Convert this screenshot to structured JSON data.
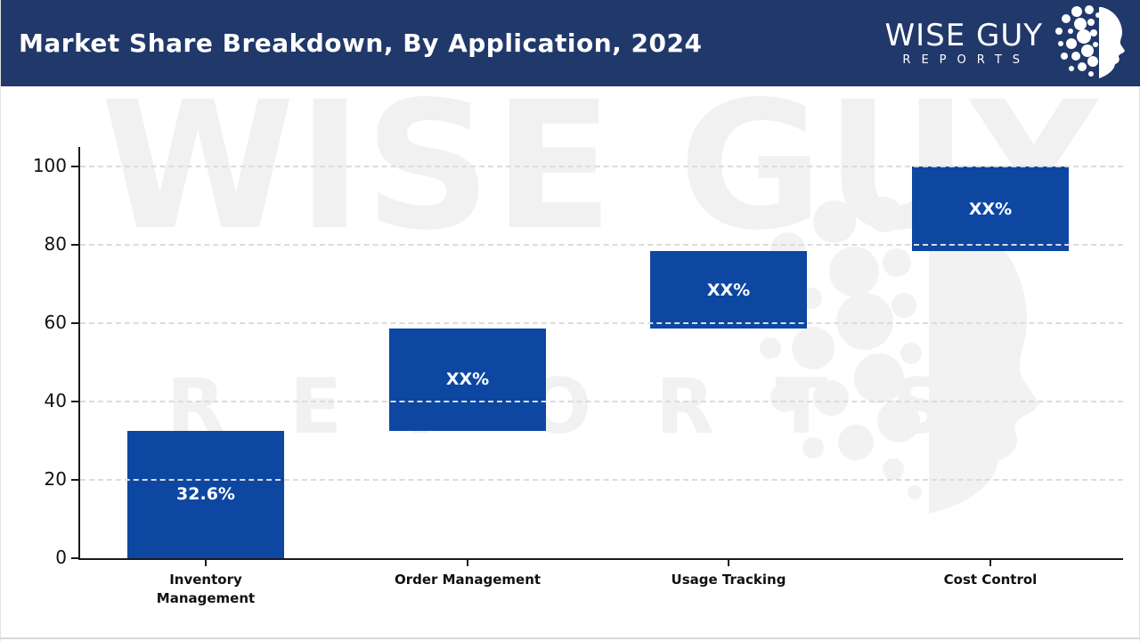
{
  "header": {
    "title": "Market Share Breakdown, By Application, 2024",
    "logo": {
      "wordmark": "WISE GUY",
      "subtitle": "REPORTS"
    }
  },
  "watermark": {
    "line1": "WISE GUY",
    "line2": "REPORTS"
  },
  "chart_data": {
    "type": "bar",
    "subtype": "waterfall",
    "title": "Market Share Breakdown, By Application, 2024",
    "categories": [
      "Inventory\nManagement",
      "Order Management",
      "Usage Tracking",
      "Cost Control"
    ],
    "segments": [
      {
        "start": 0,
        "end": 32.6,
        "label": "32.6%"
      },
      {
        "start": 32.6,
        "end": 58.6,
        "label": "XX%"
      },
      {
        "start": 58.6,
        "end": 78.4,
        "label": "XX%"
      },
      {
        "start": 78.4,
        "end": 100,
        "label": "XX%"
      }
    ],
    "y_ticks": [
      0,
      20,
      40,
      60,
      80,
      100
    ],
    "ylim": [
      0,
      105
    ],
    "xlabel": "",
    "ylabel": "",
    "grid": "horizontal-dashed-above-bars",
    "legend": "none",
    "bar_color": "#0d47a1",
    "bar_label_color": "#ffffff"
  },
  "colors": {
    "header_bg": "#21386B",
    "bar": "#0d47a1",
    "axis": "#1a1a1a",
    "gridline": "#dcdcdc",
    "watermark": "#f1f1f1"
  }
}
